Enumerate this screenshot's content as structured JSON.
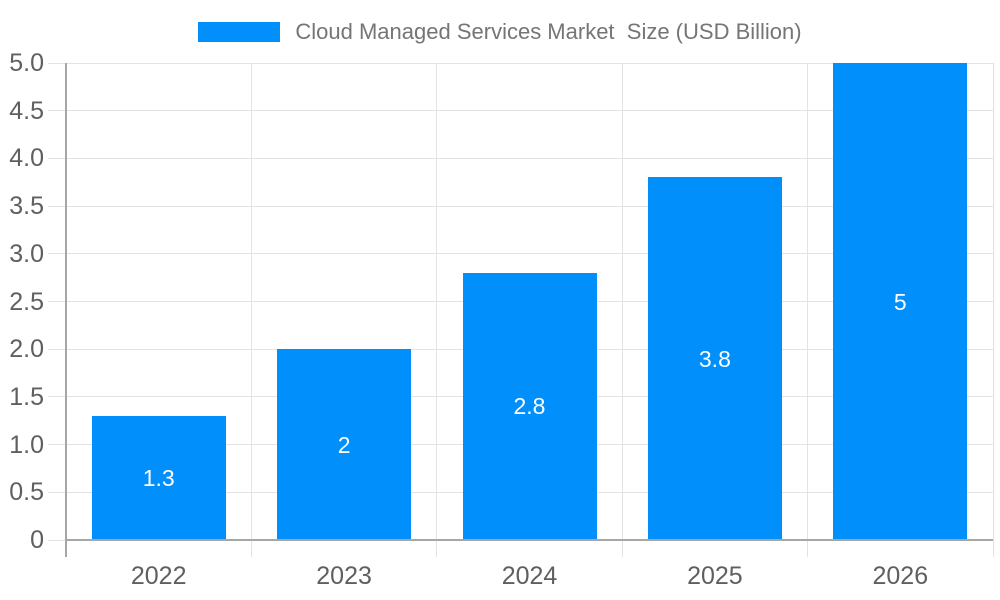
{
  "legend": {
    "label": "Cloud Managed Services Market  Size (USD Billion)"
  },
  "colors": {
    "bar": "#008FFB",
    "grid": "#e3e3e3",
    "axis": "#a6a6a6",
    "axis_label": "#5f5f5f",
    "legend_text": "#757575",
    "data_label": "#ffffff",
    "background": "#ffffff"
  },
  "chart_data": {
    "type": "bar",
    "title": "Cloud Managed Services Market  Size (USD Billion)",
    "categories": [
      "2022",
      "2023",
      "2024",
      "2025",
      "2026"
    ],
    "series": [
      {
        "name": "Cloud Managed Services Market  Size (USD Billion)",
        "values": [
          1.3,
          2,
          2.8,
          3.8,
          5
        ],
        "data_labels": [
          "1.3",
          "2",
          "2.8",
          "3.8",
          "5"
        ]
      }
    ],
    "xlabel": "",
    "ylabel": "",
    "ylim": [
      0,
      5
    ],
    "ytick_step": 0.5,
    "ytick_labels": [
      "0",
      "0.5",
      "1.0",
      "1.5",
      "2.0",
      "2.5",
      "3.0",
      "3.5",
      "4.0",
      "4.5",
      "5.0"
    ],
    "grid": true,
    "legend_position": "top",
    "data_label_position": "center"
  }
}
